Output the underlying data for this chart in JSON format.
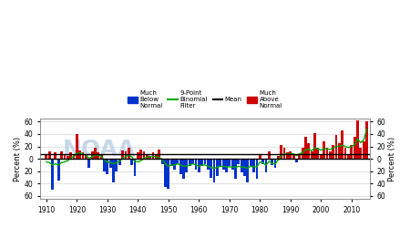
{
  "ylabel_left": "Percent (%)",
  "ylabel_right": "Percent (%)",
  "xlim": [
    1908,
    2016
  ],
  "ylim": [
    -65,
    65
  ],
  "yticks": [
    -60,
    -40,
    -20,
    0,
    20,
    40,
    60
  ],
  "years": [
    1910,
    1911,
    1912,
    1913,
    1914,
    1915,
    1916,
    1917,
    1918,
    1919,
    1920,
    1921,
    1922,
    1923,
    1924,
    1925,
    1926,
    1927,
    1928,
    1929,
    1930,
    1931,
    1932,
    1933,
    1934,
    1935,
    1936,
    1937,
    1938,
    1939,
    1940,
    1941,
    1942,
    1943,
    1944,
    1945,
    1946,
    1947,
    1948,
    1949,
    1950,
    1951,
    1952,
    1953,
    1954,
    1955,
    1956,
    1957,
    1958,
    1959,
    1960,
    1961,
    1962,
    1963,
    1964,
    1965,
    1966,
    1967,
    1968,
    1969,
    1970,
    1971,
    1972,
    1973,
    1974,
    1975,
    1976,
    1977,
    1978,
    1979,
    1980,
    1981,
    1982,
    1983,
    1984,
    1985,
    1986,
    1987,
    1988,
    1989,
    1990,
    1991,
    1992,
    1993,
    1994,
    1995,
    1996,
    1997,
    1998,
    1999,
    2000,
    2001,
    2002,
    2003,
    2004,
    2005,
    2006,
    2007,
    2008,
    2009,
    2010,
    2011,
    2012,
    2013,
    2014,
    2015
  ],
  "values": [
    8,
    12,
    -50,
    10,
    -35,
    12,
    8,
    5,
    10,
    8,
    40,
    14,
    10,
    8,
    -15,
    12,
    18,
    10,
    8,
    -20,
    -25,
    -15,
    -38,
    -20,
    -10,
    14,
    12,
    18,
    -10,
    -28,
    10,
    15,
    12,
    8,
    5,
    10,
    8,
    15,
    -8,
    -45,
    -48,
    -12,
    -18,
    -8,
    -25,
    -32,
    -22,
    -12,
    -8,
    -18,
    -22,
    -12,
    -8,
    -18,
    -30,
    -38,
    -28,
    -12,
    -18,
    -22,
    -12,
    -18,
    -32,
    -8,
    -22,
    -28,
    -38,
    -12,
    -22,
    -32,
    8,
    -8,
    -22,
    12,
    -10,
    -15,
    5,
    22,
    18,
    10,
    12,
    8,
    -5,
    8,
    18,
    35,
    25,
    12,
    42,
    18,
    8,
    28,
    18,
    12,
    22,
    38,
    25,
    45,
    18,
    8,
    22,
    35,
    62,
    18,
    28,
    60
  ],
  "smooth": [
    -5,
    -6,
    -10,
    -8,
    -10,
    -6,
    -5,
    -3,
    1,
    4,
    8,
    10,
    8,
    5,
    1,
    3,
    6,
    6,
    4,
    -2,
    -5,
    -6,
    -8,
    -6,
    -4,
    1,
    4,
    6,
    3,
    -4,
    -5,
    -3,
    1,
    3,
    3,
    4,
    3,
    2,
    -1,
    -8,
    -12,
    -10,
    -10,
    -8,
    -10,
    -12,
    -12,
    -10,
    -8,
    -10,
    -12,
    -10,
    -10,
    -12,
    -14,
    -15,
    -14,
    -12,
    -12,
    -13,
    -13,
    -13,
    -14,
    -12,
    -13,
    -14,
    -15,
    -12,
    -13,
    -13,
    -5,
    -7,
    -10,
    -4,
    -7,
    -8,
    -2,
    5,
    8,
    7,
    8,
    8,
    5,
    8,
    10,
    15,
    15,
    13,
    18,
    16,
    14,
    16,
    16,
    15,
    17,
    20,
    20,
    22,
    20,
    18,
    20,
    22,
    32,
    26,
    30,
    48
  ],
  "mean_line": 8,
  "color_above": "#cc0000",
  "color_below": "#0033cc",
  "color_smooth": "#00aa00",
  "color_mean": "#000000",
  "bg_color": "#ffffff",
  "watermark_color": "#b0c8e0"
}
